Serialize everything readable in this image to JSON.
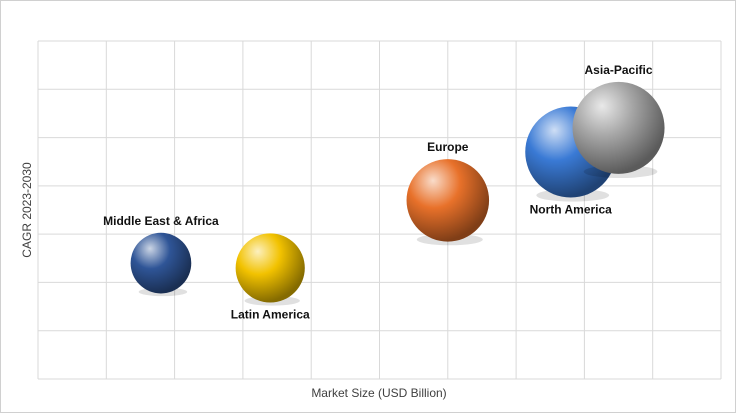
{
  "chart_data": {
    "type": "bubble",
    "title": "",
    "xlabel": "Market Size (USD Billion)",
    "ylabel": "CAGR 2023-2030",
    "grid": true,
    "legend": "none",
    "tick_labels": false,
    "xlim": [
      0,
      10
    ],
    "ylim": [
      0,
      7
    ],
    "series": [
      {
        "name": "Middle East & Africa",
        "x": 1.8,
        "y": 2.4,
        "size": 20,
        "color": "#2f5597",
        "label_position": "above"
      },
      {
        "name": "Latin America",
        "x": 3.4,
        "y": 2.3,
        "size": 26,
        "color": "#f2c200",
        "label_position": "below"
      },
      {
        "name": "Europe",
        "x": 6.0,
        "y": 3.7,
        "size": 37,
        "color": "#e8712a",
        "label_position": "above"
      },
      {
        "name": "North America",
        "x": 7.8,
        "y": 4.7,
        "size": 45,
        "color": "#3a7ad5",
        "label_position": "below"
      },
      {
        "name": "Asia-Pacific",
        "x": 8.5,
        "y": 5.2,
        "size": 46,
        "color": "#a6a6a6",
        "label_position": "above"
      }
    ]
  }
}
